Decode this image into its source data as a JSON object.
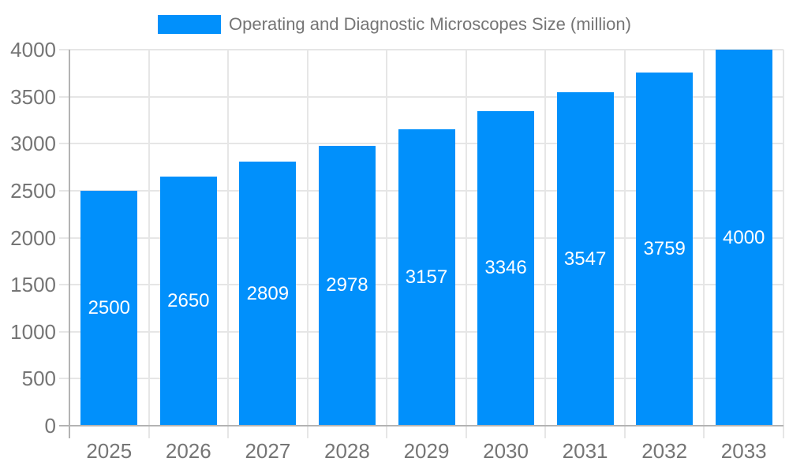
{
  "chart_data": {
    "type": "bar",
    "title": "",
    "legend_label": "Operating and Diagnostic Microscopes Size (million)",
    "legend_position": "top-center",
    "categories": [
      "2025",
      "2026",
      "2027",
      "2028",
      "2029",
      "2030",
      "2031",
      "2032",
      "2033"
    ],
    "values": [
      2500,
      2650,
      2809,
      2978,
      3157,
      3346,
      3547,
      3759,
      4000
    ],
    "value_labels_position": "inside-center",
    "xlabel": "",
    "ylabel": "",
    "ylim": [
      0,
      4000
    ],
    "yticks": [
      0,
      500,
      1000,
      1500,
      2000,
      2500,
      3000,
      3500,
      4000
    ],
    "grid": true,
    "colors": {
      "bar": "#0190fb",
      "value_label": "#ffffff",
      "axis_text": "#757575",
      "legend_text": "#757575",
      "gridline": "#e6e6e6",
      "axis_line": "#b3b3b3",
      "background": "#ffffff"
    }
  }
}
